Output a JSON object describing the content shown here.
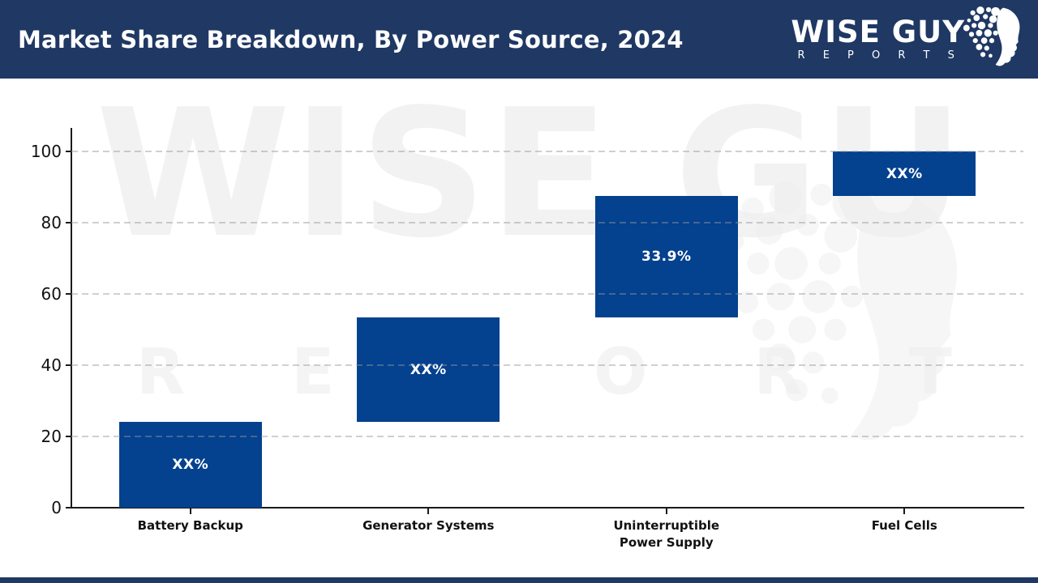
{
  "header": {
    "title": "Market Share Breakdown, By Power Source, 2024",
    "bg_color": "#1f3864",
    "logo": {
      "line1": "WISE GUY",
      "line2": "R E P O R T S"
    }
  },
  "watermark": {
    "line1": "WISE GU",
    "line2": "R E P O R T S"
  },
  "footer": {
    "bg_color": "#1f3864"
  },
  "chart_data": {
    "type": "bar",
    "subtype": "waterfall",
    "title": "Market Share Breakdown, By Power Source, 2024",
    "xlabel": "",
    "ylabel": "",
    "categories": [
      "Battery Backup",
      "Generator Systems",
      "Uninterruptible\nPower Supply",
      "Fuel Cells"
    ],
    "segments": [
      {
        "start": 0,
        "end": 24,
        "label": "XX%"
      },
      {
        "start": 24,
        "end": 53.4,
        "label": "XX%"
      },
      {
        "start": 53.5,
        "end": 87.4,
        "label": "33.9%"
      },
      {
        "start": 87.4,
        "end": 100,
        "label": "XX%"
      }
    ],
    "yticks": [
      0,
      20,
      40,
      60,
      80,
      100
    ],
    "ylim": [
      0,
      106.5
    ],
    "bar_color": "#04418f",
    "grid": "dashed-horizontal",
    "legend": "none"
  }
}
